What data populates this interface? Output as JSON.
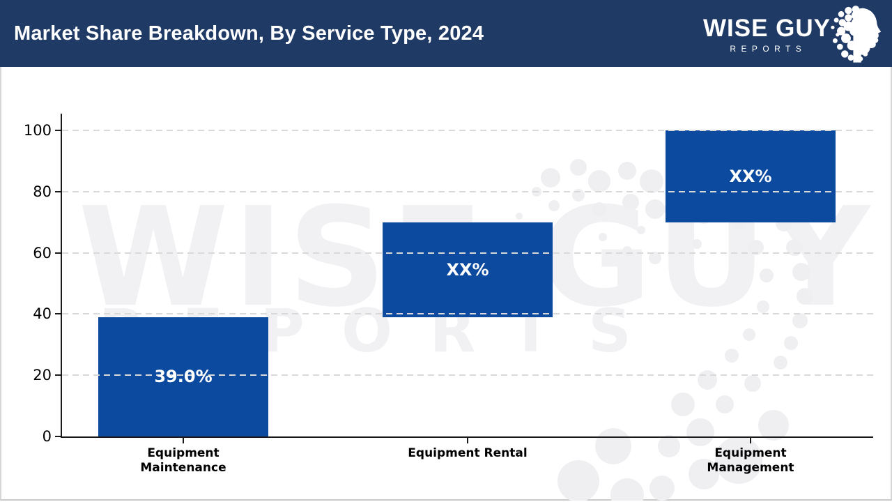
{
  "header": {
    "title": "Market Share Breakdown, By Service Type, 2024",
    "bg_color": "#203a66",
    "logo": {
      "line1": "WISE GUY",
      "line2": "REPORTS"
    }
  },
  "watermark": {
    "line1": "WISE GUY",
    "line2": "REPORTS"
  },
  "chart_data": {
    "type": "bar",
    "subtype": "waterfall-floating-bars",
    "title": "Market Share Breakdown, By Service Type, 2024",
    "categories": [
      "Equipment Maintenance",
      "Equipment Rental",
      "Equipment Management"
    ],
    "category_lines": [
      [
        "Equipment",
        "Maintenance"
      ],
      [
        "Equipment Rental"
      ],
      [
        "Equipment",
        "Management"
      ]
    ],
    "segments": [
      {
        "category": "Equipment Maintenance",
        "start": 0,
        "end": 39,
        "label": "39.0%"
      },
      {
        "category": "Equipment Rental",
        "start": 39,
        "end": 70,
        "label": "XX%"
      },
      {
        "category": "Equipment Management",
        "start": 70,
        "end": 100,
        "label": "XX%"
      }
    ],
    "unit": "%",
    "ylim": [
      0,
      100
    ],
    "yticks": [
      0,
      20,
      40,
      60,
      80,
      100
    ],
    "grid": "horizontal-dashed",
    "grid_color": "#d9d9d9",
    "bar_color": "#0b4a9e",
    "value_label_color": "#ffffff",
    "axis_color": "#1a1a1a",
    "legend": "none"
  }
}
